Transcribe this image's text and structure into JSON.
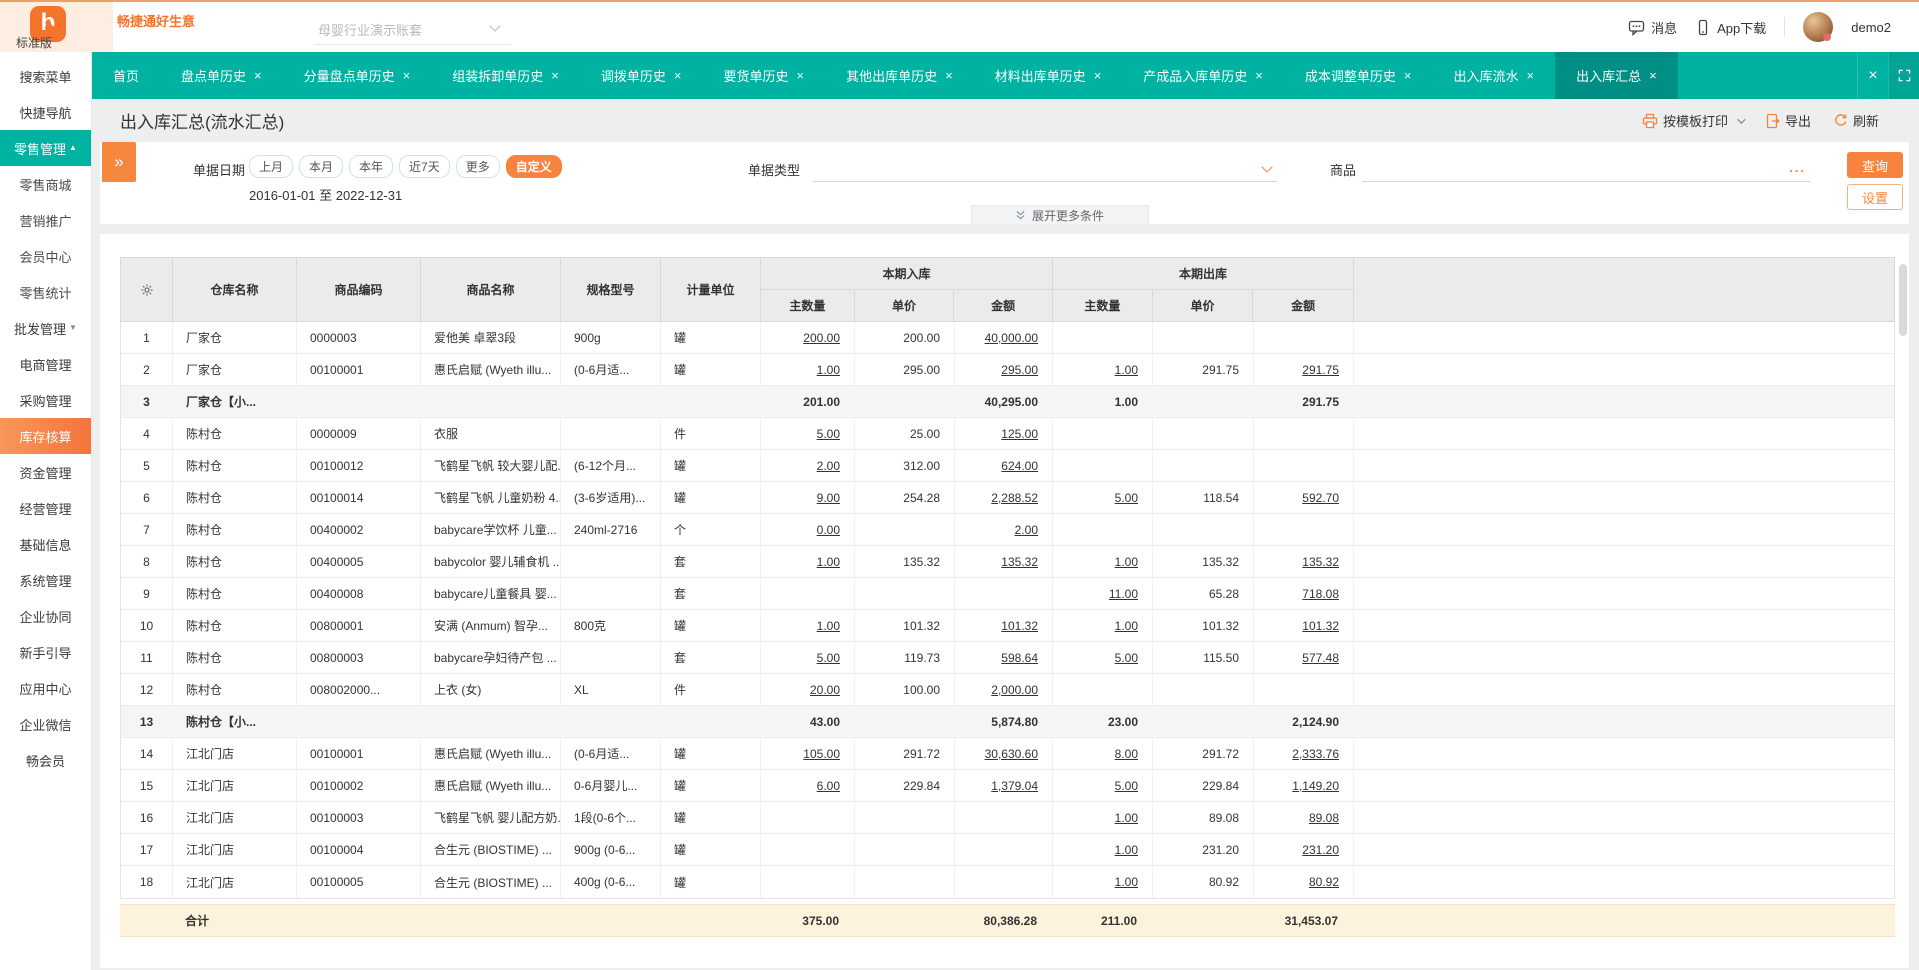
{
  "brand": {
    "name": "畅捷通好生意",
    "edition": "标准版",
    "logo_letter": "b"
  },
  "topbar": {
    "account_placeholder": "母婴行业演示账套",
    "messages": "消息",
    "app_download": "App下载",
    "username": "demo2"
  },
  "tabbar": {
    "tabs": [
      {
        "label": "首页",
        "closable": false,
        "active": false
      },
      {
        "label": "盘点单历史",
        "closable": true,
        "active": false
      },
      {
        "label": "分量盘点单历史",
        "closable": true,
        "active": false
      },
      {
        "label": "组装拆卸单历史",
        "closable": true,
        "active": false
      },
      {
        "label": "调拨单历史",
        "closable": true,
        "active": false
      },
      {
        "label": "要货单历史",
        "closable": true,
        "active": false
      },
      {
        "label": "其他出库单历史",
        "closable": true,
        "active": false
      },
      {
        "label": "材料出库单历史",
        "closable": true,
        "active": false
      },
      {
        "label": "产成品入库单历史",
        "closable": true,
        "active": false
      },
      {
        "label": "成本调整单历史",
        "closable": true,
        "active": false
      },
      {
        "label": "出入库流水",
        "closable": true,
        "active": false
      },
      {
        "label": "出入库汇总",
        "closable": true,
        "active": true
      }
    ]
  },
  "sidebar": {
    "items": [
      {
        "label": "搜索菜单",
        "style": "plain"
      },
      {
        "label": "快捷导航",
        "style": "plain"
      },
      {
        "label": "零售管理",
        "style": "teal",
        "arrow": "up"
      },
      {
        "label": "零售商城",
        "style": "sub"
      },
      {
        "label": "营销推广",
        "style": "sub"
      },
      {
        "label": "会员中心",
        "style": "sub"
      },
      {
        "label": "零售统计",
        "style": "sub"
      },
      {
        "label": "批发管理",
        "style": "plain",
        "arrow": "down"
      },
      {
        "label": "电商管理",
        "style": "plain"
      },
      {
        "label": "采购管理",
        "style": "plain"
      },
      {
        "label": "库存核算",
        "style": "orange"
      },
      {
        "label": "资金管理",
        "style": "plain"
      },
      {
        "label": "经营管理",
        "style": "plain"
      },
      {
        "label": "基础信息",
        "style": "plain"
      },
      {
        "label": "系统管理",
        "style": "plain"
      },
      {
        "label": "企业协同",
        "style": "plain"
      },
      {
        "label": "新手引导",
        "style": "plain"
      },
      {
        "label": "应用中心",
        "style": "plain"
      },
      {
        "label": "企业微信",
        "style": "plain"
      },
      {
        "label": "畅会员",
        "style": "plain"
      }
    ]
  },
  "page": {
    "title": "出入库汇总(流水汇总)",
    "print": "按模板打印",
    "export": "导出",
    "refresh": "刷新"
  },
  "filters": {
    "date_label": "单据日期",
    "date_quick": [
      "上月",
      "本月",
      "本年",
      "近7天",
      "更多"
    ],
    "date_custom": "自定义",
    "date_range": "2016-01-01 至 2022-12-31",
    "doc_type_label": "单据类型",
    "product_label": "商品",
    "query": "查询",
    "settings": "设置",
    "expand_more": "展开更多条件"
  },
  "table": {
    "col_headers": {
      "warehouse": "仓库名称",
      "code": "商品编码",
      "name": "商品名称",
      "spec": "规格型号",
      "unit": "计量单位",
      "group_in": "本期入库",
      "group_out": "本期出库",
      "qty": "主数量",
      "price": "单价",
      "amount": "金额"
    },
    "rows": [
      {
        "n": "1",
        "w": "厂家仓",
        "c": "0000003",
        "nm": "爱他美 卓翠3段",
        "sp": "900g",
        "u": "罐",
        "iq": "200.00",
        "ip": "200.00",
        "ia": "40,000.00",
        "oq": "",
        "op": "",
        "oa": ""
      },
      {
        "n": "2",
        "w": "厂家仓",
        "c": "00100001",
        "nm": "惠氏启赋 (Wyeth illu...",
        "sp": "(0-6月适...",
        "u": "罐",
        "iq": "1.00",
        "ip": "295.00",
        "ia": "295.00",
        "oq": "1.00",
        "op": "291.75",
        "oa": "291.75"
      },
      {
        "n": "3",
        "w": "厂家仓【小...",
        "c": "",
        "nm": "",
        "sp": "",
        "u": "",
        "iq": "201.00",
        "ip": "",
        "ia": "40,295.00",
        "oq": "1.00",
        "op": "",
        "oa": "291.75",
        "kind": "subtotal"
      },
      {
        "n": "4",
        "w": "陈村仓",
        "c": "0000009",
        "nm": "衣服",
        "sp": "",
        "u": "件",
        "iq": "5.00",
        "ip": "25.00",
        "ia": "125.00",
        "oq": "",
        "op": "",
        "oa": ""
      },
      {
        "n": "5",
        "w": "陈村仓",
        "c": "00100012",
        "nm": "飞鹤星飞帆 较大婴儿配...",
        "sp": "(6-12个月...",
        "u": "罐",
        "iq": "2.00",
        "ip": "312.00",
        "ia": "624.00",
        "oq": "",
        "op": "",
        "oa": ""
      },
      {
        "n": "6",
        "w": "陈村仓",
        "c": "00100014",
        "nm": "飞鹤星飞帆 儿童奶粉 4...",
        "sp": "(3-6岁适用)...",
        "u": "罐",
        "iq": "9.00",
        "ip": "254.28",
        "ia": "2,288.52",
        "oq": "5.00",
        "op": "118.54",
        "oa": "592.70"
      },
      {
        "n": "7",
        "w": "陈村仓",
        "c": "00400002",
        "nm": "babycare学饮杯 儿童...",
        "sp": "240ml-2716",
        "u": "个",
        "iq": "0.00",
        "ip": "",
        "ia": "2.00",
        "oq": "",
        "op": "",
        "oa": ""
      },
      {
        "n": "8",
        "w": "陈村仓",
        "c": "00400005",
        "nm": "babycolor 婴儿辅食机 ...",
        "sp": "",
        "u": "套",
        "iq": "1.00",
        "ip": "135.32",
        "ia": "135.32",
        "oq": "1.00",
        "op": "135.32",
        "oa": "135.32"
      },
      {
        "n": "9",
        "w": "陈村仓",
        "c": "00400008",
        "nm": "babycare儿童餐具 婴...",
        "sp": "",
        "u": "套",
        "iq": "",
        "ip": "",
        "ia": "",
        "oq": "11.00",
        "op": "65.28",
        "oa": "718.08"
      },
      {
        "n": "10",
        "w": "陈村仓",
        "c": "00800001",
        "nm": "安满 (Anmum) 智孕...",
        "sp": "800克",
        "u": "罐",
        "iq": "1.00",
        "ip": "101.32",
        "ia": "101.32",
        "oq": "1.00",
        "op": "101.32",
        "oa": "101.32"
      },
      {
        "n": "11",
        "w": "陈村仓",
        "c": "00800003",
        "nm": "babycare孕妇待产包 ...",
        "sp": "",
        "u": "套",
        "iq": "5.00",
        "ip": "119.73",
        "ia": "598.64",
        "oq": "5.00",
        "op": "115.50",
        "oa": "577.48"
      },
      {
        "n": "12",
        "w": "陈村仓",
        "c": "008002000...",
        "nm": "上衣 (女)",
        "sp": "XL",
        "u": "件",
        "iq": "20.00",
        "ip": "100.00",
        "ia": "2,000.00",
        "oq": "",
        "op": "",
        "oa": ""
      },
      {
        "n": "13",
        "w": "陈村仓【小...",
        "c": "",
        "nm": "",
        "sp": "",
        "u": "",
        "iq": "43.00",
        "ip": "",
        "ia": "5,874.80",
        "oq": "23.00",
        "op": "",
        "oa": "2,124.90",
        "kind": "subtotal"
      },
      {
        "n": "14",
        "w": "江北门店",
        "c": "00100001",
        "nm": "惠氏启赋 (Wyeth illu...",
        "sp": "(0-6月适...",
        "u": "罐",
        "iq": "105.00",
        "ip": "291.72",
        "ia": "30,630.60",
        "oq": "8.00",
        "op": "291.72",
        "oa": "2,333.76"
      },
      {
        "n": "15",
        "w": "江北门店",
        "c": "00100002",
        "nm": "惠氏启赋 (Wyeth illu...",
        "sp": "0-6月婴儿...",
        "u": "罐",
        "iq": "6.00",
        "ip": "229.84",
        "ia": "1,379.04",
        "oq": "5.00",
        "op": "229.84",
        "oa": "1,149.20"
      },
      {
        "n": "16",
        "w": "江北门店",
        "c": "00100003",
        "nm": "飞鹤星飞帆 婴儿配方奶...",
        "sp": "1段(0-6个...",
        "u": "罐",
        "iq": "",
        "ip": "",
        "ia": "",
        "oq": "1.00",
        "op": "89.08",
        "oa": "89.08"
      },
      {
        "n": "17",
        "w": "江北门店",
        "c": "00100004",
        "nm": "合生元 (BIOSTIME) ...",
        "sp": "900g (0-6...",
        "u": "罐",
        "iq": "",
        "ip": "",
        "ia": "",
        "oq": "1.00",
        "op": "231.20",
        "oa": "231.20"
      },
      {
        "n": "18",
        "w": "江北门店",
        "c": "00100005",
        "nm": "合生元 (BIOSTIME) ...",
        "sp": "400g (0-6...",
        "u": "罐",
        "iq": "",
        "ip": "",
        "ia": "",
        "oq": "1.00",
        "op": "80.92",
        "oa": "80.92"
      }
    ],
    "total": {
      "label": "合计",
      "in_qty": "375.00",
      "in_amt": "80,386.28",
      "out_qty": "211.00",
      "out_amt": "31,453.07"
    }
  }
}
